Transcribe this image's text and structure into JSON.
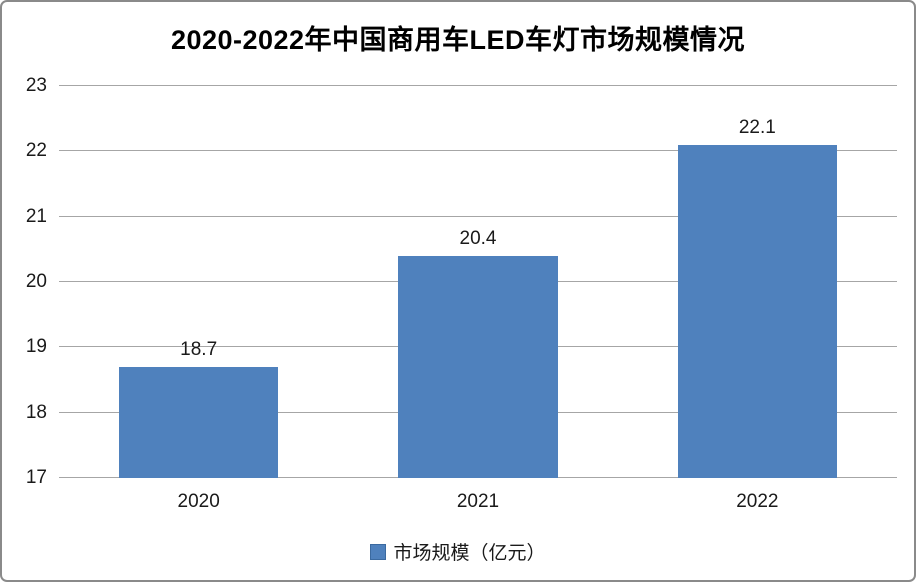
{
  "title": "2020-2022年中国商用车LED车灯市场规模情况",
  "legend": {
    "label": "市场规模（亿元）"
  },
  "colors": {
    "bar": "#4f81bd",
    "bar_border": "#3b6aa0",
    "gridline": "#a6a6a6",
    "frame_border": "#8a8a8a",
    "text": "#1a1a1a"
  },
  "chart_data": {
    "type": "bar",
    "title": "2020-2022年中国商用车LED车灯市场规模情况",
    "categories": [
      "2020",
      "2021",
      "2022"
    ],
    "values": [
      18.7,
      20.4,
      22.1
    ],
    "series_name": "市场规模（亿元）",
    "data_labels": [
      "18.7",
      "20.4",
      "22.1"
    ],
    "ylim": [
      17,
      23
    ],
    "yticks": [
      17,
      18,
      19,
      20,
      21,
      22,
      23
    ],
    "xlabel": "",
    "ylabel": "",
    "grid": true,
    "legend_position": "bottom",
    "bar_width_fraction": 0.571
  }
}
